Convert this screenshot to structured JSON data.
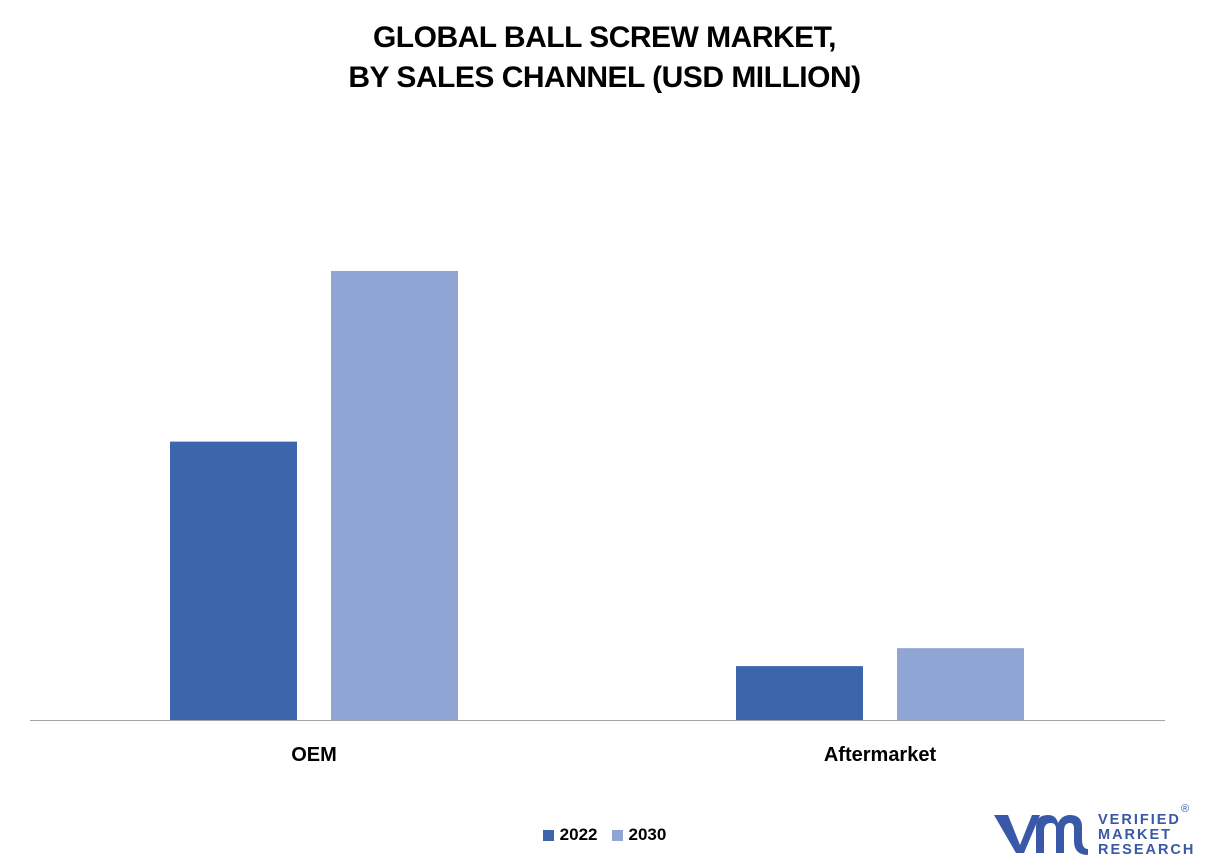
{
  "chart_data": {
    "type": "bar",
    "title_lines": [
      "GLOBAL BALL SCREW MARKET,",
      "BY SALES CHANNEL (USD MILLION)"
    ],
    "categories": [
      "OEM",
      "Aftermarket"
    ],
    "series": [
      {
        "name": "2022",
        "values": [
          62,
          12
        ],
        "color": "#3d65ac"
      },
      {
        "name": "2030",
        "values": [
          100,
          16
        ],
        "color": "#91a5d4"
      }
    ],
    "ylim": [
      0,
      100
    ],
    "grid": false,
    "legend_position": "bottom-center",
    "axis_color": "#a6a6a6"
  },
  "logo": {
    "lines": [
      "VERIFIED",
      "MARKET",
      "RESEARCH"
    ],
    "registered": "®",
    "color": "#3a58a8"
  }
}
